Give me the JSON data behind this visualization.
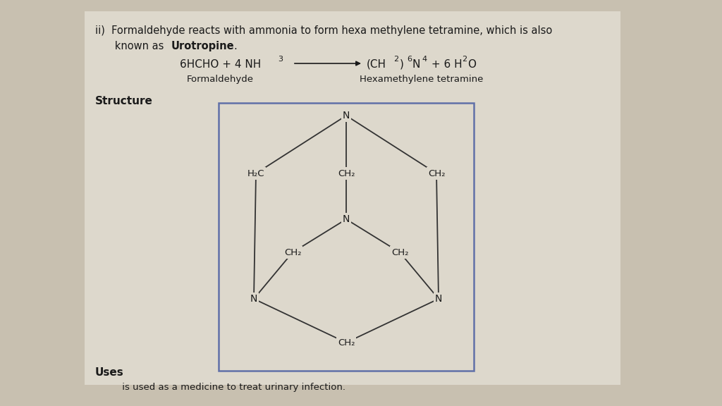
{
  "background_color": "#c8c0b0",
  "paper_color": "#ddd8cc",
  "box_color": "#6070a8",
  "text_color": "#1a1a1a",
  "bond_color": "#333333",
  "font_size_main": 10.5,
  "font_size_eq": 11,
  "font_size_label": 9.5,
  "font_size_atom": 10,
  "font_size_struct_label": 11,
  "structure_heading": "Structure",
  "uses_heading": "Uses",
  "eq_left": "6HCHO + 4 NH",
  "eq_right_1": "(CH",
  "eq_right_2": ")",
  "eq_right_3": "N",
  "eq_right_4": " + 6 H",
  "eq_right_5": "O",
  "label_formaldehyde": "Formaldehyde",
  "label_hexamethylene": "Hexamethylene tetramine",
  "line1": "ii)  Formaldehyde reacts with ammonia to form hexa methylene tetramine, which is also",
  "line2_pre": "      known as ",
  "line2_bold": "Urotropine",
  "line2_post": ".",
  "uses_line": "         is used as a medicine to treat urinary infection."
}
